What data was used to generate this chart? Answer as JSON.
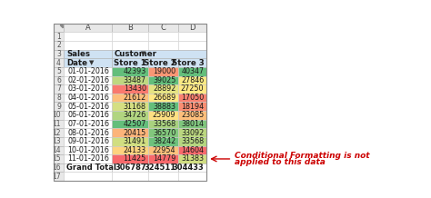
{
  "col_headers_row3": [
    "Sales",
    "Customer"
  ],
  "col_headers_row4": [
    "Date",
    "Store 1",
    "Store 2",
    "Store 3"
  ],
  "dates": [
    "01-01-2016",
    "02-01-2016",
    "03-01-2016",
    "04-01-2016",
    "05-01-2016",
    "06-01-2016",
    "07-01-2016",
    "08-01-2016",
    "09-01-2016",
    "10-01-2016",
    "11-01-2016"
  ],
  "store1": [
    42393,
    33487,
    13430,
    21612,
    31168,
    34726,
    42507,
    20415,
    31491,
    24133,
    11425
  ],
  "store2": [
    19000,
    39025,
    28892,
    26689,
    38883,
    25909,
    33568,
    36570,
    38242,
    22954,
    14779
  ],
  "store3": [
    40347,
    27846,
    27250,
    17050,
    18194,
    23085,
    38014,
    33092,
    33568,
    14604,
    31383
  ],
  "grand_total": [
    "Grand Total",
    306787,
    324511,
    304433
  ],
  "annotation_line1": "Conditional Formatting is not",
  "annotation_line2": "applied to this data",
  "header_bg": "#cfe2f3",
  "row_bg": "#ffffff",
  "border_color": "#b0b0b0",
  "text_color": "#1a1a1a",
  "annotation_color": "#cc0000",
  "cmap_colors": [
    "#f8696b",
    "#ffeb84",
    "#63be7b"
  ],
  "row_header_bg": "#e8e8e8",
  "col_header_bg": "#e8e8e8"
}
